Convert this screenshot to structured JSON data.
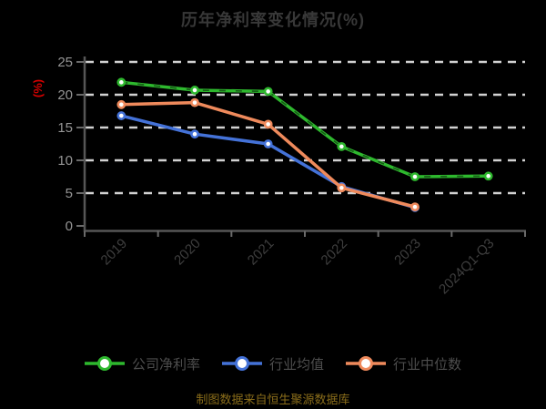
{
  "header": {
    "title": "历年净利率变化情况(%)"
  },
  "footer": {
    "text": "制图数据来自恒生聚源数据库"
  },
  "chart_data": {
    "type": "line",
    "title": "历年净利率变化情况(%)",
    "xlabel": "",
    "ylabel": "(%)",
    "ylabel_color": "#d40000",
    "categories": [
      "2019",
      "2020",
      "2021",
      "2022",
      "2023",
      "2024Q1-Q3"
    ],
    "series": [
      {
        "name": "公司净利率",
        "color": "#2eb82e",
        "values": [
          21.9,
          20.7,
          20.5,
          12.1,
          7.5,
          7.6
        ]
      },
      {
        "name": "行业均值",
        "color": "#4472d8",
        "values": [
          16.8,
          14.0,
          12.5,
          6.0,
          2.8,
          null
        ]
      },
      {
        "name": "行业中位数",
        "color": "#ef8a5c",
        "values": [
          18.5,
          18.8,
          15.5,
          5.8,
          2.9,
          null
        ]
      }
    ],
    "ylim": [
      0,
      25
    ],
    "yticks": [
      0,
      5,
      10,
      15,
      20,
      25
    ],
    "grid": "horizontal-dashed",
    "legend_position": "bottom",
    "marker": "white-core-donut",
    "styles": {
      "grid_color": "#d2d2d2",
      "axis_color": "#565656",
      "tick_color": "#6a6a6a",
      "ytick_label_color": "#959595",
      "xtick_label_color": "#3e3e3e",
      "title_color": "#383838",
      "legend_text_color": "#4d4d4d",
      "footer_color": "#8a6d1a",
      "background": "#000000"
    }
  }
}
